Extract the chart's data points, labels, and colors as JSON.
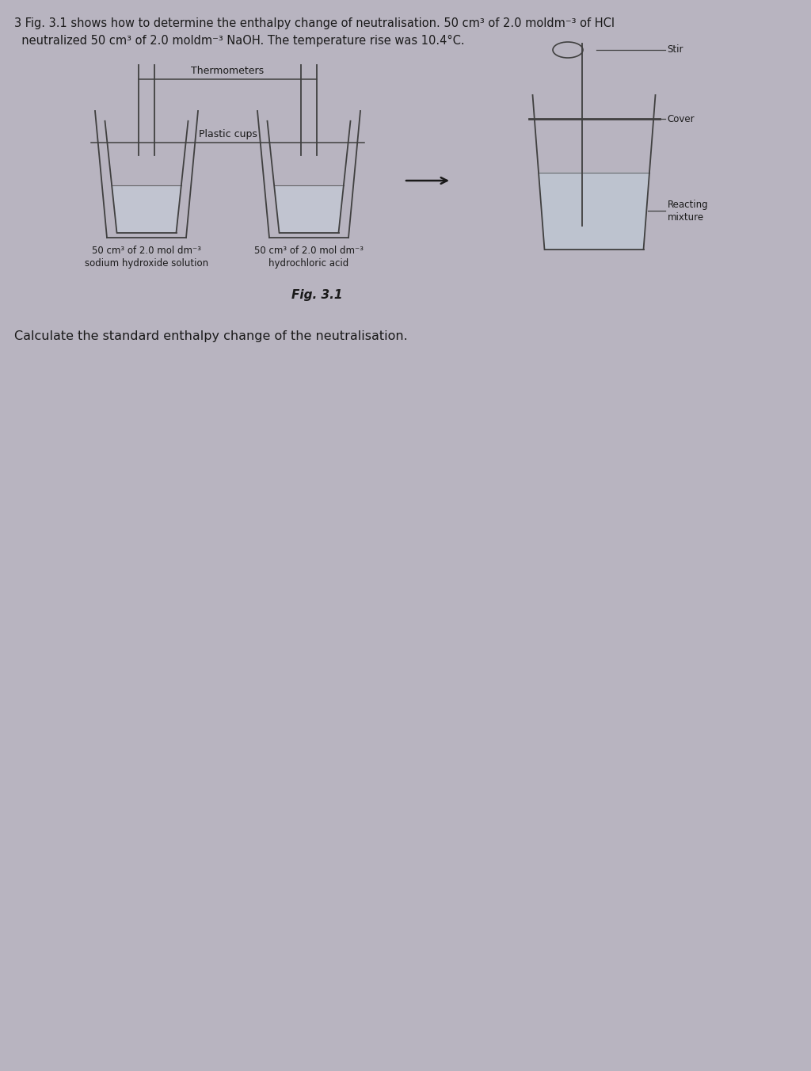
{
  "background_color": "#b8b4c0",
  "header_line1": "3 Fig. 3.1 shows how to determine the enthalpy change of neutralisation. 50 cm³ of 2.0 moldm⁻³ of HCl",
  "header_line2": "  neutralized 50 cm³ of 2.0 moldm⁻³ NaOH. The temperature rise was 10.4°C.",
  "fig_caption": "Fig. 3.1",
  "question_text": "Calculate the standard enthalpy change of the neutralisation.",
  "text_color": "#1a1a1a",
  "diagram": {
    "cup1_label_line1": "50 cm³ of 2.0 mol dm⁻³",
    "cup1_label_line2": "sodium hydroxide solution",
    "cup2_label_line1": "50 cm³ of 2.0 mol dm⁻³",
    "cup2_label_line2": "hydrochloric acid",
    "thermometers_label": "Thermometers",
    "plastic_cups_label": "Plastic cups",
    "stir_label": "Stir",
    "cover_label": "Cover",
    "reacting_label": "Reacting\nmixture"
  }
}
